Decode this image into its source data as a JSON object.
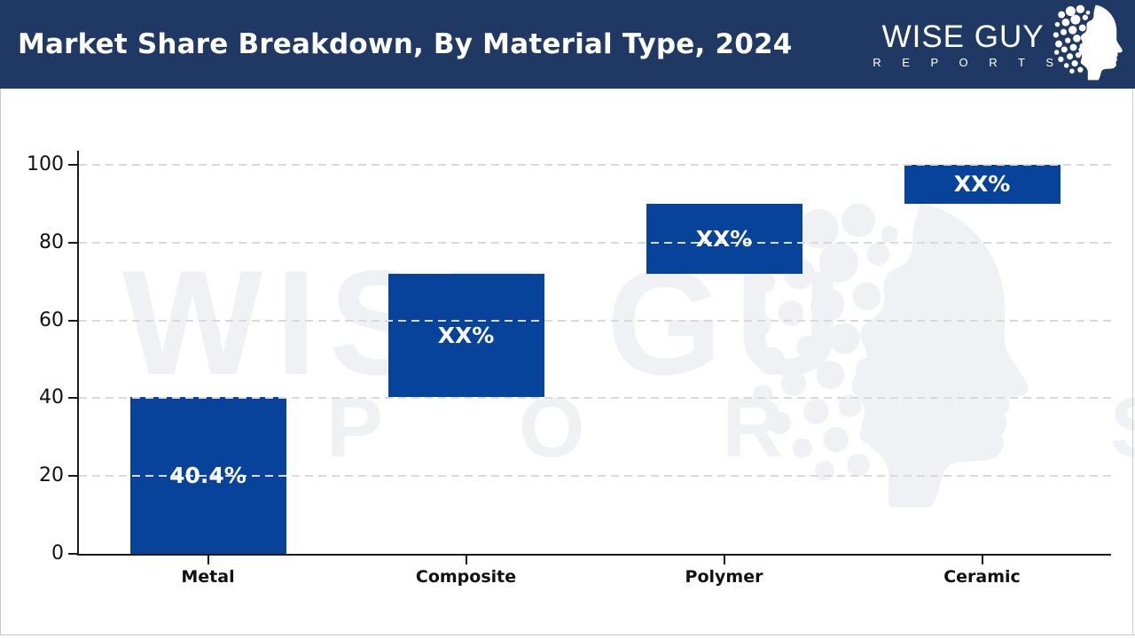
{
  "header": {
    "title": "Market Share Breakdown, By Material Type, 2024",
    "logo": {
      "line1": "WISE GUY",
      "line2": "R E P O R T S"
    }
  },
  "watermark": {
    "line1": "WISE GU",
    "line2": "P O R T S"
  },
  "chart_data": {
    "type": "bar",
    "subtype": "waterfall",
    "title": "Market Share Breakdown, By Material Type, 2024",
    "categories": [
      "Metal",
      "Composite",
      "Polymer",
      "Ceramic"
    ],
    "segments": [
      {
        "category": "Metal",
        "start": 0,
        "end": 40.4,
        "label": "40.4%"
      },
      {
        "category": "Composite",
        "start": 40.4,
        "end": 72,
        "label": "XX%"
      },
      {
        "category": "Polymer",
        "start": 72,
        "end": 90,
        "label": "XX%"
      },
      {
        "category": "Ceramic",
        "start": 90,
        "end": 100,
        "label": "XX%"
      }
    ],
    "xlabel": "",
    "ylabel": "",
    "ylim": [
      0,
      100
    ],
    "yticks": [
      0,
      20,
      40,
      60,
      80,
      100
    ],
    "grid": "horizontal-dashed",
    "legend": "none"
  },
  "colors": {
    "header_bg": "#1f3864",
    "bar": "#08439b",
    "bar_label": "#ffffff",
    "grid": "#d9d9d9",
    "axis": "#1a1a1a",
    "watermark": "#f0f1f4",
    "white": "#ffffff",
    "frame": "#c9c9c9"
  }
}
